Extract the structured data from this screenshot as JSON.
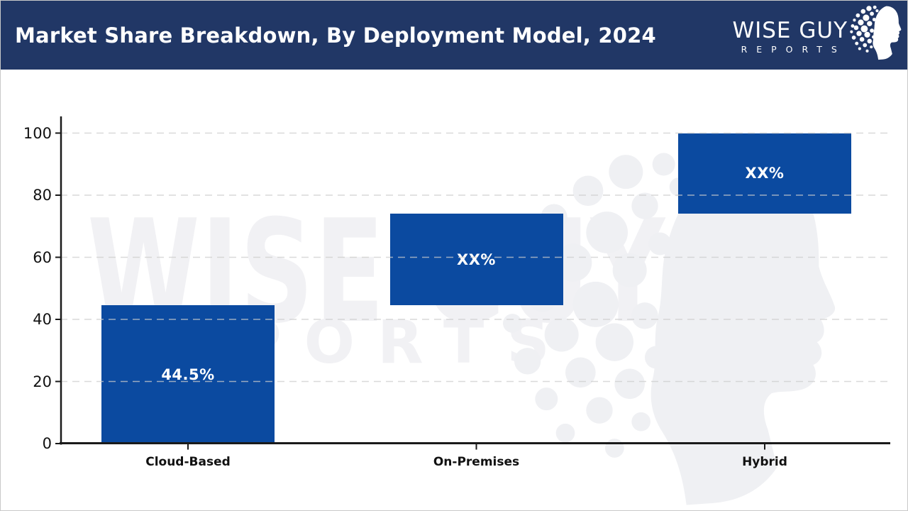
{
  "header": {
    "title": "Market Share Breakdown, By Deployment Model, 2024",
    "logo": {
      "name": "WISE GUY",
      "sub": "REPORTS"
    },
    "bg_color": "#213766"
  },
  "watermark": {
    "name": "WISE GUY",
    "sub": "REPORTS"
  },
  "chart_data": {
    "type": "bar",
    "subtype": "floating-segment (waterfall-style market share)",
    "title": "Market Share Breakdown, By Deployment Model, 2024",
    "categories": [
      "Cloud-Based",
      "On-Premises",
      "Hybrid"
    ],
    "segments": [
      {
        "category": "Cloud-Based",
        "start": 0,
        "end": 44.5,
        "label": "44.5%"
      },
      {
        "category": "On-Premises",
        "start": 44.5,
        "end": 74,
        "label": "XX%"
      },
      {
        "category": "Hybrid",
        "start": 74,
        "end": 100,
        "label": "XX%"
      }
    ],
    "xlabel": "",
    "ylabel": "",
    "ylim": [
      0,
      100
    ],
    "yticks": [
      0,
      20,
      40,
      60,
      80,
      100
    ],
    "grid": "horizontal dashed, drawn over bars",
    "legend": "none",
    "bar_color": "#0b4aa0",
    "bar_label_color": "#ffffff",
    "axis_color": "#1a1a1a",
    "gridline_color": "#cccccc"
  }
}
